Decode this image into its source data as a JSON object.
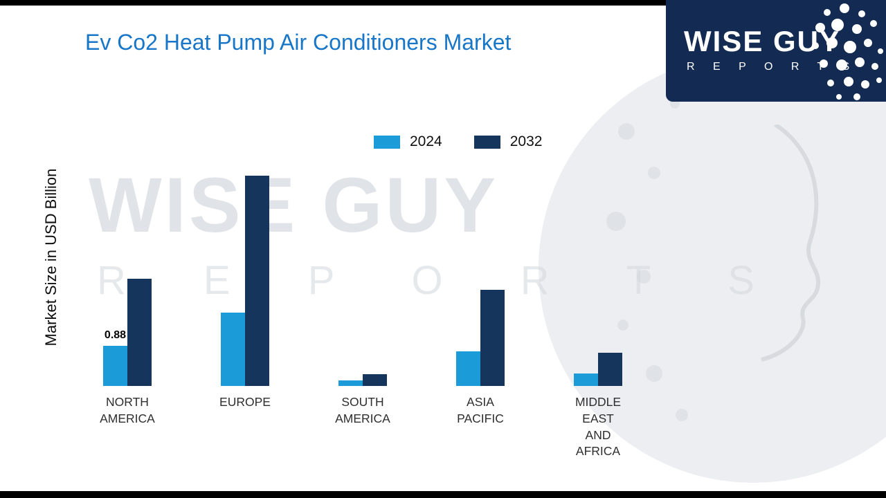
{
  "header": {
    "title": "Ev Co2 Heat Pump Air Conditioners Market"
  },
  "logo": {
    "brand_line1": "WISE GUY",
    "brand_line2": "R E P O R T S"
  },
  "watermark": {
    "line1": "WISE GUY",
    "line2": "R E P O R T S"
  },
  "colors": {
    "series_2024": "#1b9cd8",
    "series_2032": "#16355c",
    "title_blue": "#1876c8",
    "logo_navy": "#132b52",
    "black_bar": "#000000"
  },
  "chart_data": {
    "type": "bar",
    "title": "Ev Co2 Heat Pump Air Conditioners Market",
    "xlabel": "",
    "ylabel": "Market Size in USD Billion",
    "units": "USD Billion",
    "categories": [
      "NORTH\nAMERICA",
      "EUROPE",
      "SOUTH\nAMERICA",
      "ASIA\nPACIFIC",
      "MIDDLE\nEAST\nAND\nAFRICA"
    ],
    "series": [
      {
        "name": "2024",
        "color": "#1b9cd8",
        "values": [
          0.88,
          1.6,
          0.12,
          0.75,
          0.28
        ]
      },
      {
        "name": "2032",
        "color": "#16355c",
        "values": [
          2.35,
          4.6,
          0.26,
          2.1,
          0.72
        ]
      }
    ],
    "annotations": [
      {
        "series": "2024",
        "category_index": 0,
        "text": "0.88"
      }
    ],
    "ylim": [
      0,
      5
    ],
    "grid": false,
    "legend_position": "top-center"
  }
}
